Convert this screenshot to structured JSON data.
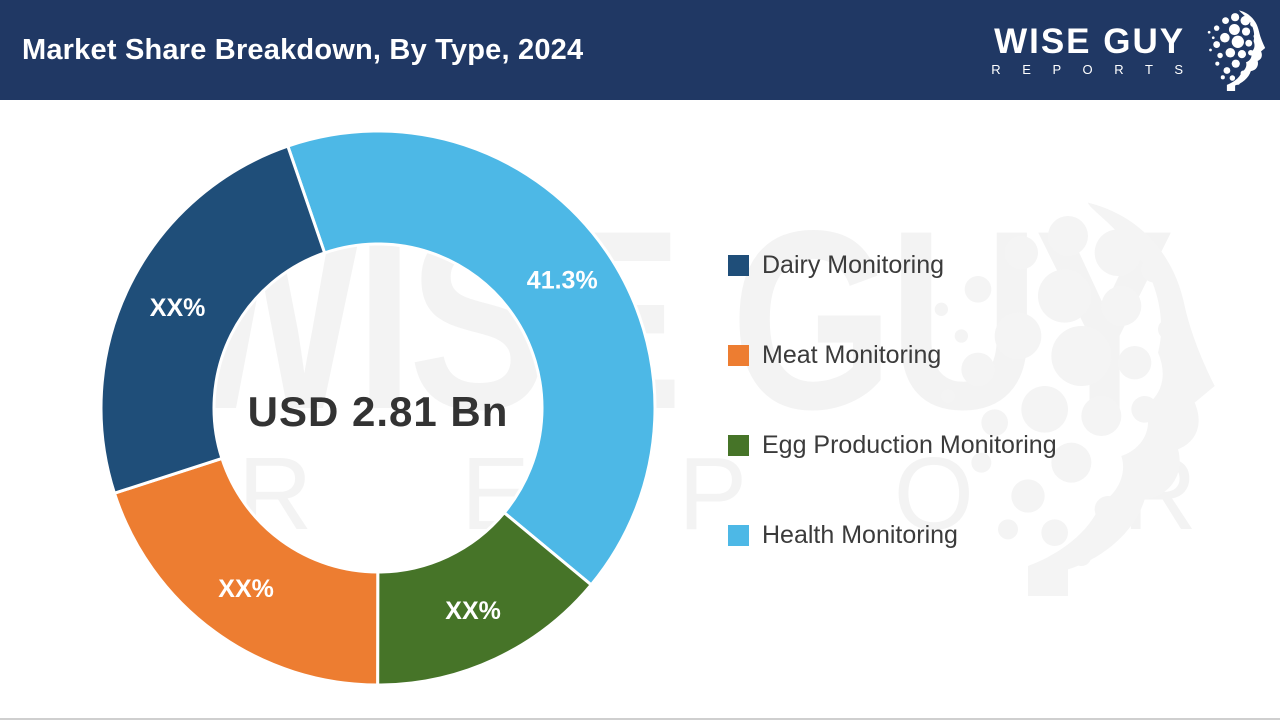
{
  "header": {
    "title": "Market Share Breakdown, By Type, 2024",
    "brand": {
      "line1": "WISE GUY",
      "line2": "R E P O R T S"
    },
    "bg_color": "#203864"
  },
  "watermark": {
    "line1": "WISE GUY",
    "line2": "R E P O R T S"
  },
  "chart_data": {
    "type": "pie",
    "subtype": "donut",
    "title": "Market Share Breakdown, By Type, 2024",
    "center_label": "USD 2.81 Bn",
    "start_angle_deg": -19,
    "direction": "clockwise",
    "draw_order": [
      3,
      2,
      1,
      0
    ],
    "legend_position": "right",
    "segments": [
      {
        "name": "Dairy Monitoring",
        "value_pct": 24.7,
        "display_label": "XX%",
        "color": "#1F4E79"
      },
      {
        "name": "Meat Monitoring",
        "value_pct": 20.0,
        "display_label": "XX%",
        "color": "#ED7D31"
      },
      {
        "name": "Egg Production Monitoring",
        "value_pct": 14.0,
        "display_label": "XX%",
        "color": "#467428"
      },
      {
        "name": "Health Monitoring",
        "value_pct": 41.3,
        "display_label": "41.3%",
        "color": "#4DB8E6"
      }
    ]
  }
}
